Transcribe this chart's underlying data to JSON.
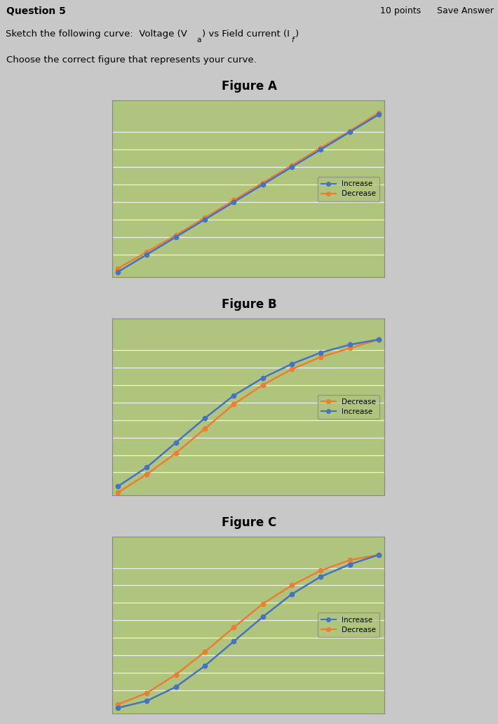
{
  "title_main": "Question 5",
  "points_label": "10 points",
  "save_answer": "Save Answer",
  "question_text1": "Sketch the following curve:  Voltage (V",
  "question_sub1": "a",
  "question_text2": ") vs Field current (I",
  "question_sub2": "f",
  "question_text3": ")",
  "choose_text": "Choose the correct figure that represents your curve.",
  "fig_titles": [
    "Figure A",
    "Figure B",
    "Figure C"
  ],
  "bg_color_plot": "#afc47d",
  "bg_color_page": "#c8c8c8",
  "bg_color_header": "#ffffff",
  "bg_color_question": "#f0f0f0",
  "blue_color": "#4472c4",
  "orange_color": "#ed7d31",
  "legend_increase": "Increase",
  "legend_decrease": "Decrease",
  "figA": {
    "increase_x": [
      0,
      1,
      2,
      3,
      4,
      5,
      6,
      7,
      8,
      9
    ],
    "increase_y": [
      0,
      1,
      2,
      3,
      4,
      5,
      6,
      7,
      8,
      9
    ],
    "decrease_x": [
      0,
      1,
      2,
      3,
      4,
      5,
      6,
      7,
      8,
      9
    ],
    "decrease_y": [
      0.2,
      1.15,
      2.1,
      3.1,
      4.1,
      5.1,
      6.1,
      7.1,
      8.05,
      9.1
    ],
    "legend_order": [
      "increase",
      "decrease"
    ]
  },
  "figB": {
    "increase_x": [
      0,
      1,
      2,
      3,
      4,
      5,
      6,
      7,
      8,
      9
    ],
    "increase_y": [
      0.2,
      1.3,
      2.7,
      4.1,
      5.4,
      6.4,
      7.2,
      7.85,
      8.3,
      8.6
    ],
    "decrease_x": [
      0,
      1,
      2,
      3,
      4,
      5,
      6,
      7,
      8,
      9
    ],
    "decrease_y": [
      -0.15,
      0.9,
      2.1,
      3.5,
      4.9,
      6.0,
      6.9,
      7.6,
      8.1,
      8.6
    ],
    "legend_order": [
      "decrease",
      "increase"
    ]
  },
  "figC": {
    "increase_x": [
      0,
      1,
      2,
      3,
      4,
      5,
      6,
      7,
      8,
      9
    ],
    "increase_y": [
      0.0,
      0.4,
      1.2,
      2.4,
      3.8,
      5.2,
      6.5,
      7.5,
      8.2,
      8.75
    ],
    "decrease_x": [
      0,
      1,
      2,
      3,
      4,
      5,
      6,
      7,
      8,
      9
    ],
    "decrease_y": [
      0.2,
      0.85,
      1.9,
      3.2,
      4.6,
      5.95,
      7.0,
      7.85,
      8.45,
      8.75
    ],
    "legend_order": [
      "increase",
      "decrease"
    ]
  },
  "grid_lines_y": [
    1,
    2,
    3,
    4,
    5,
    6,
    7,
    8
  ],
  "plot_ylim": [
    -0.3,
    9.8
  ],
  "plot_xlim": [
    -0.2,
    9.2
  ]
}
